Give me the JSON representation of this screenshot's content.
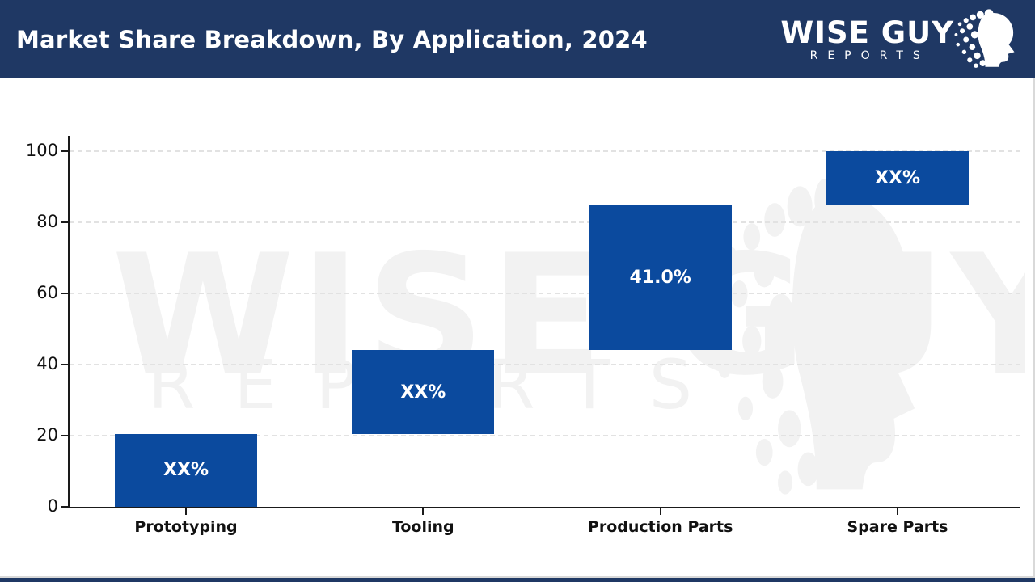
{
  "header": {
    "title": "Market Share Breakdown, By Application, 2024",
    "bg_color": "#1f3864",
    "brand": {
      "line1": "WISE GUY",
      "line2": "REPORTS"
    }
  },
  "watermark": {
    "line1": "WISE GUY",
    "line2": "REPORTS"
  },
  "footer": {
    "bar_color": "#1f3864"
  },
  "chart_data": {
    "type": "bar",
    "subtype": "waterfall",
    "title": "Market Share Breakdown, By Application, 2024",
    "categories": [
      "Prototyping",
      "Tooling",
      "Production Parts",
      "Spare Parts"
    ],
    "segments": [
      {
        "category": "Prototyping",
        "start": 0,
        "end": 20.5,
        "value_label": "XX%"
      },
      {
        "category": "Tooling",
        "start": 20.5,
        "end": 44,
        "value_label": "XX%"
      },
      {
        "category": "Production Parts",
        "start": 44,
        "end": 85,
        "value_label": "41.0%"
      },
      {
        "category": "Spare Parts",
        "start": 85,
        "end": 100,
        "value_label": "XX%"
      }
    ],
    "ylim": [
      0,
      100
    ],
    "yticks": [
      0,
      20,
      40,
      60,
      80,
      100
    ],
    "grid": "horizontal-dashed",
    "legend": "none",
    "bar_color": "#0b4a9e",
    "bar_label_color": "#ffffff",
    "axis_color": "#1a1a1a"
  }
}
